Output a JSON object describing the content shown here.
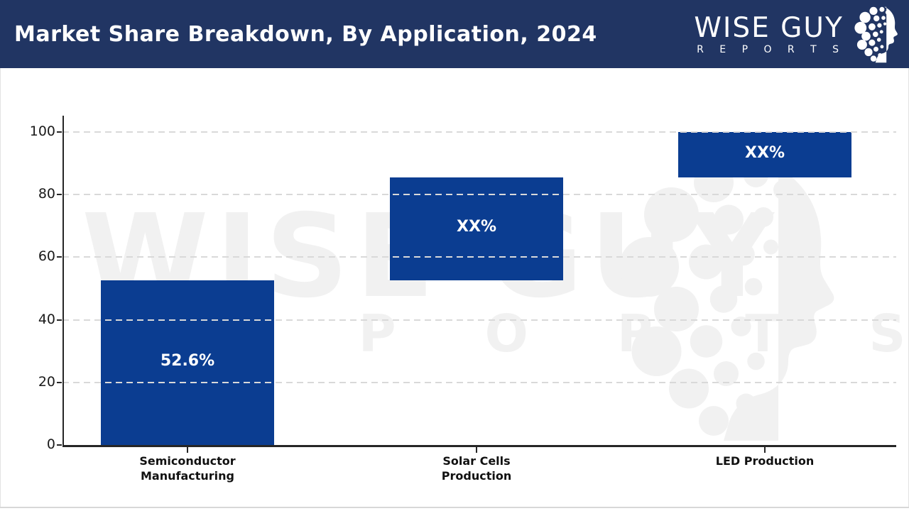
{
  "header": {
    "title": "Market Share Breakdown, By Application, 2024",
    "logo": {
      "line1": "WISE GUY",
      "line2": "R E P O R T S"
    }
  },
  "watermark": {
    "line1": "WISE GUY",
    "line2": "R E P O R T S"
  },
  "chart_data": {
    "type": "bar",
    "subtype": "waterfall",
    "title": "Market Share Breakdown, By Application, 2024",
    "categories": [
      "Semiconductor Manufacturing",
      "Solar Cells Production",
      "LED Production"
    ],
    "category_lines": [
      [
        "Semiconductor",
        "Manufacturing"
      ],
      [
        "Solar Cells",
        "Production"
      ],
      [
        "LED Production"
      ]
    ],
    "segments": [
      {
        "category": "Semiconductor Manufacturing",
        "start": 0,
        "end": 52.6,
        "value": 52.6,
        "label": "52.6%"
      },
      {
        "category": "Solar Cells Production",
        "start": 52.6,
        "end": 85.6,
        "value": 33.0,
        "label": "XX%"
      },
      {
        "category": "LED Production",
        "start": 85.6,
        "end": 100,
        "value": 14.4,
        "label": "XX%"
      }
    ],
    "ylim": [
      0,
      100
    ],
    "yticks": [
      0,
      20,
      40,
      60,
      80,
      100
    ],
    "xlabel": "",
    "ylabel": "",
    "legend": "none",
    "grid": "horizontal dashed, drawn over bars",
    "bar_color": "#0b3d91",
    "bar_label_color": "#ffffff"
  },
  "colors": {
    "header_bg": "#213563",
    "bar_blue": "#0b3d91",
    "gridline": "#d9d9d9",
    "axis": "#262626",
    "text_dark": "#111111",
    "watermark": "#f1f1f1"
  }
}
